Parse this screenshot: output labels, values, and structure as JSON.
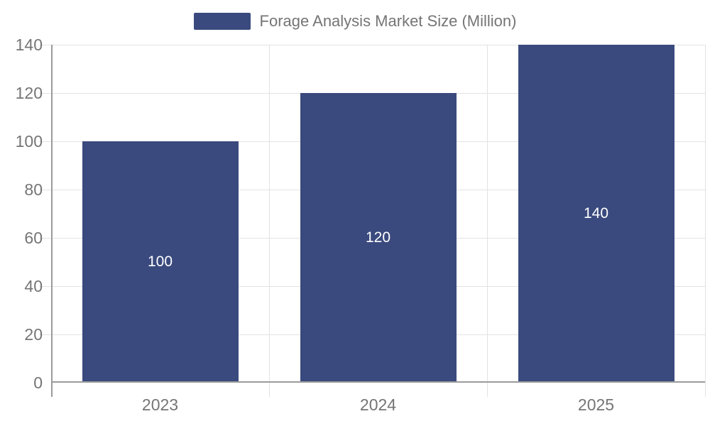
{
  "legend": {
    "label": "Forage Analysis Market Size (Million)"
  },
  "colors": {
    "bar": "#3A4A7E",
    "axis_line": "#9B9B9B",
    "gridline": "#E3E3E3",
    "tick_text": "#757575",
    "legend_text": "#757575",
    "bar_label_text": "#FFFFFF",
    "background": "#FFFFFF"
  },
  "chart_data": {
    "type": "bar",
    "title": "Forage Analysis Market Size (Million)",
    "categories": [
      "2023",
      "2024",
      "2025"
    ],
    "series": [
      {
        "name": "Forage Analysis Market Size (Million)",
        "values": [
          100,
          120,
          140
        ]
      }
    ],
    "value_labels": [
      "100",
      "120",
      "140"
    ],
    "value_label_position": "inside-center",
    "xlabel": "",
    "ylabel": "",
    "ylim": [
      0,
      140
    ],
    "yticks": [
      0,
      20,
      40,
      60,
      80,
      100,
      120,
      140
    ],
    "grid": true,
    "legend_position": "top-center"
  }
}
